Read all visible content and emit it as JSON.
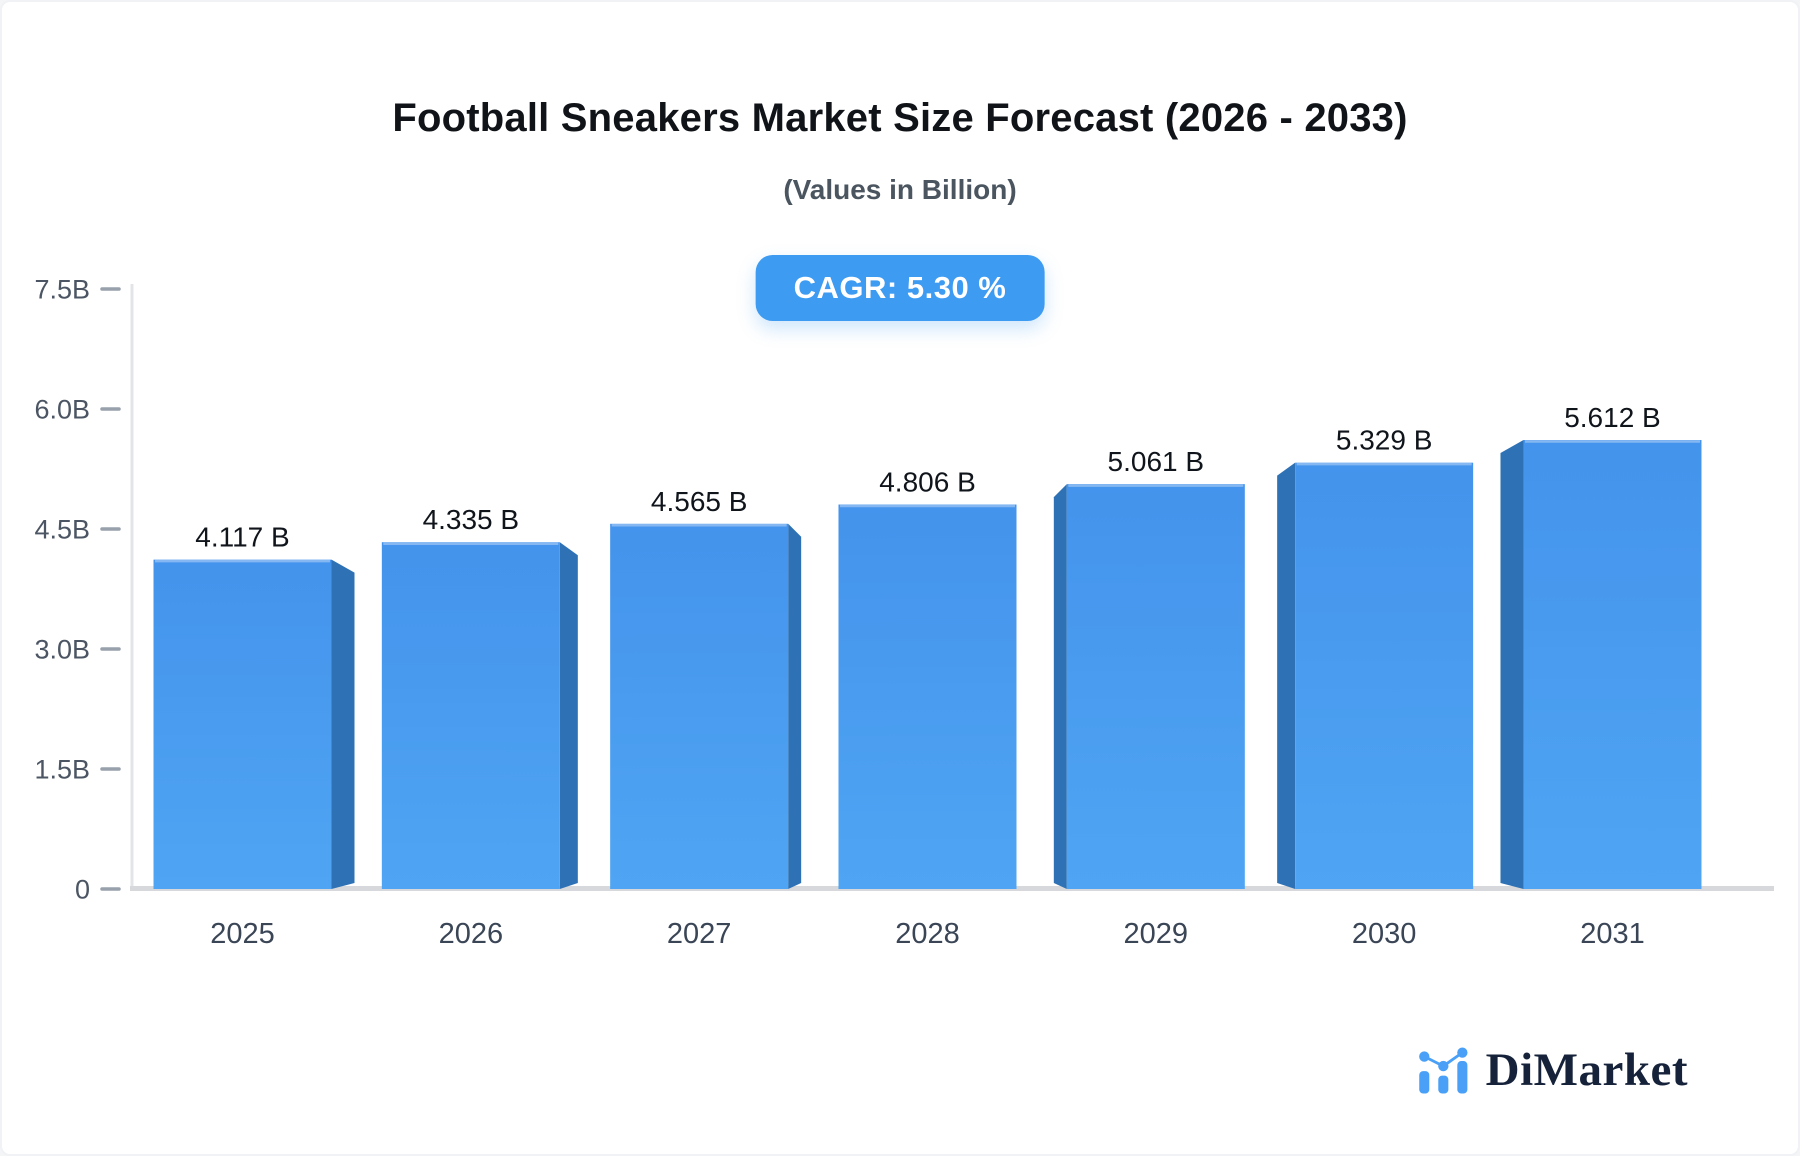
{
  "header": {
    "title": "Football Sneakers Market Size Forecast (2026 - 2033)",
    "subtitle": "(Values in Billion)",
    "cagr_badge": "CAGR: 5.30 %"
  },
  "chart_data": {
    "type": "bar",
    "title": "Football Sneakers Market Size Forecast (2026 - 2033)",
    "subtitle": "(Values in Billion)",
    "unit": "Billion",
    "cagr": "5.30 %",
    "categories": [
      "2025",
      "2026",
      "2027",
      "2028",
      "2029",
      "2030",
      "2031"
    ],
    "values": [
      4.117,
      4.335,
      4.565,
      4.806,
      5.061,
      5.329,
      5.612
    ],
    "bar_labels": [
      "4.117 B",
      "4.335 B",
      "4.565 B",
      "4.806 B",
      "5.061 B",
      "5.329 B",
      "5.612 B"
    ],
    "ylim": [
      0,
      7.5
    ],
    "yticks": [
      {
        "value": 0,
        "label": "0"
      },
      {
        "value": 1.5,
        "label": "1.5B"
      },
      {
        "value": 3.0,
        "label": "3.0B"
      },
      {
        "value": 4.5,
        "label": "4.5B"
      },
      {
        "value": 6.0,
        "label": "6.0B"
      },
      {
        "value": 7.5,
        "label": "7.5B"
      }
    ],
    "grid": false,
    "legend": "none",
    "colors": {
      "bar_fill_top": "#4493EC",
      "bar_fill_bottom": "#4FA5F3",
      "bar_side": "#2E72B5",
      "badge_background": "#3D9BF2",
      "axis_line": "#E2E4E7",
      "baseline": "#D6D8DB",
      "tick_label": "#4B5563",
      "value_label": "#10151C",
      "year_label": "#3A4556"
    }
  },
  "logo": {
    "brand": "DiMarket",
    "icon": "bar-line-chart-icon",
    "icon_color": "#4AA0F6",
    "text_color": "#15223A"
  }
}
